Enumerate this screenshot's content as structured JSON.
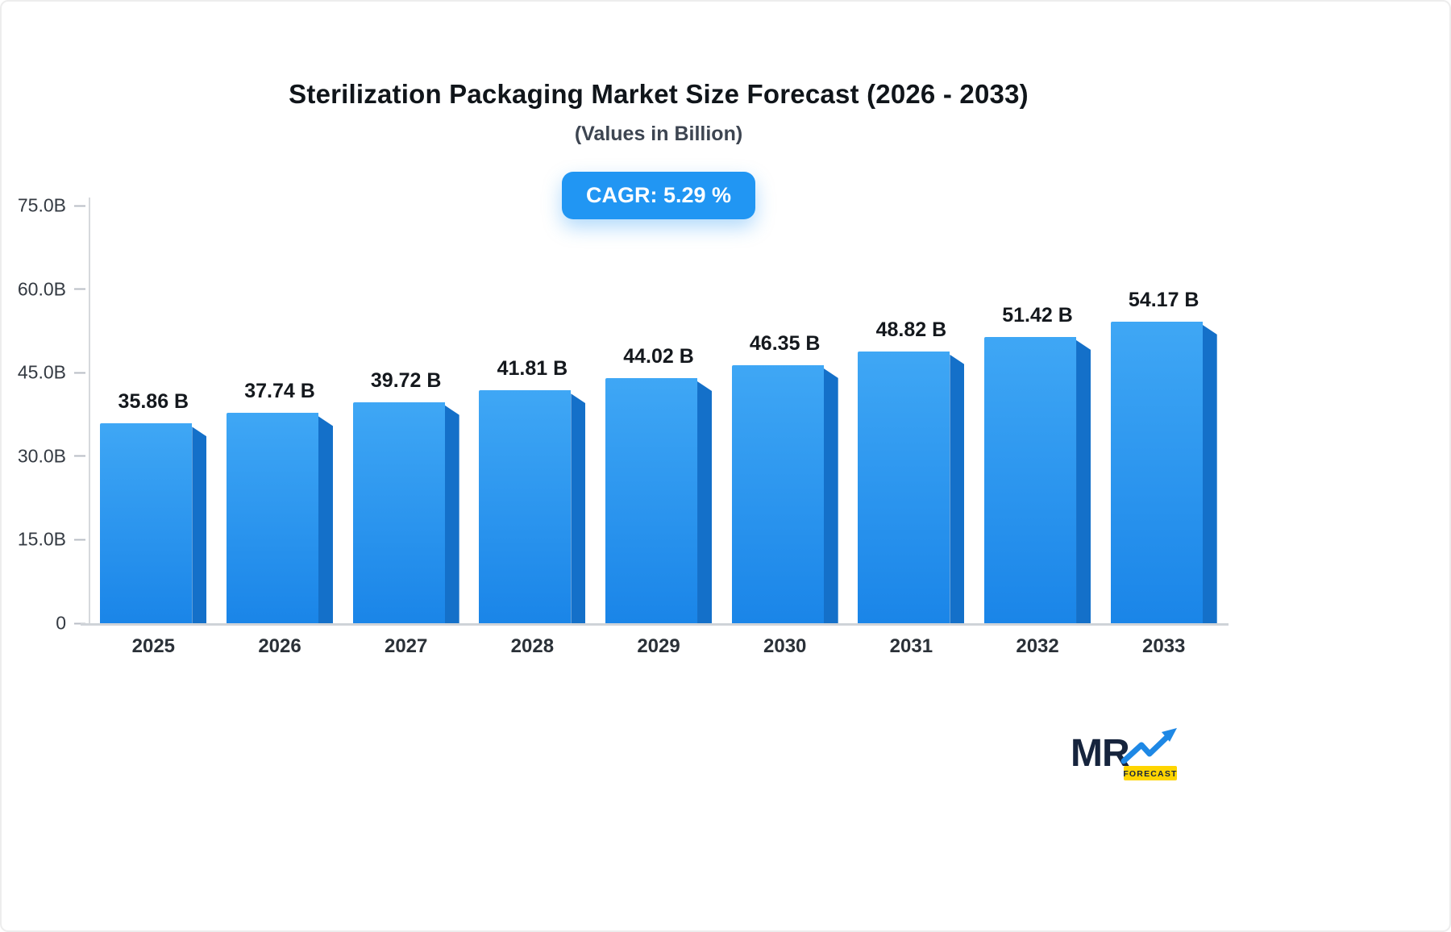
{
  "header": {
    "title": "Sterilization Packaging Market Size Forecast (2026 - 2033)",
    "subtitle": "(Values in Billion)",
    "cagr_badge": "CAGR: 5.29 %",
    "badge_color": "#2196f3"
  },
  "chart_data": {
    "type": "bar",
    "title": "Sterilization Packaging Market Size Forecast (2026 - 2033)",
    "subtitle": "(Values in Billion)",
    "categories": [
      "2025",
      "2026",
      "2027",
      "2028",
      "2029",
      "2030",
      "2031",
      "2032",
      "2033"
    ],
    "values": [
      35.86,
      37.74,
      39.72,
      41.81,
      44.02,
      46.35,
      48.82,
      51.42,
      54.17
    ],
    "value_labels": [
      "35.86 B",
      "37.74 B",
      "39.72 B",
      "41.81 B",
      "44.02 B",
      "46.35 B",
      "48.82 B",
      "51.42 B",
      "54.17 B"
    ],
    "ylim": [
      0,
      75
    ],
    "yticks": [
      {
        "value": 0,
        "label": "0"
      },
      {
        "value": 15,
        "label": "15.0B"
      },
      {
        "value": 30,
        "label": "30.0B"
      },
      {
        "value": 45,
        "label": "45.0B"
      },
      {
        "value": 60,
        "label": "60.0B"
      },
      {
        "value": 75,
        "label": "75.0B"
      }
    ],
    "grid": false,
    "legend": false,
    "bar_color_top": "#3fa7f5",
    "bar_color_bottom": "#1a85e8",
    "bar_side_color": "#1470c9"
  },
  "logo": {
    "wordmark": "MR",
    "tagline": "FORECAST",
    "wordmark_color": "#16243d",
    "arrow_color": "#1e88e5",
    "tagline_bg": "#ffd500"
  }
}
